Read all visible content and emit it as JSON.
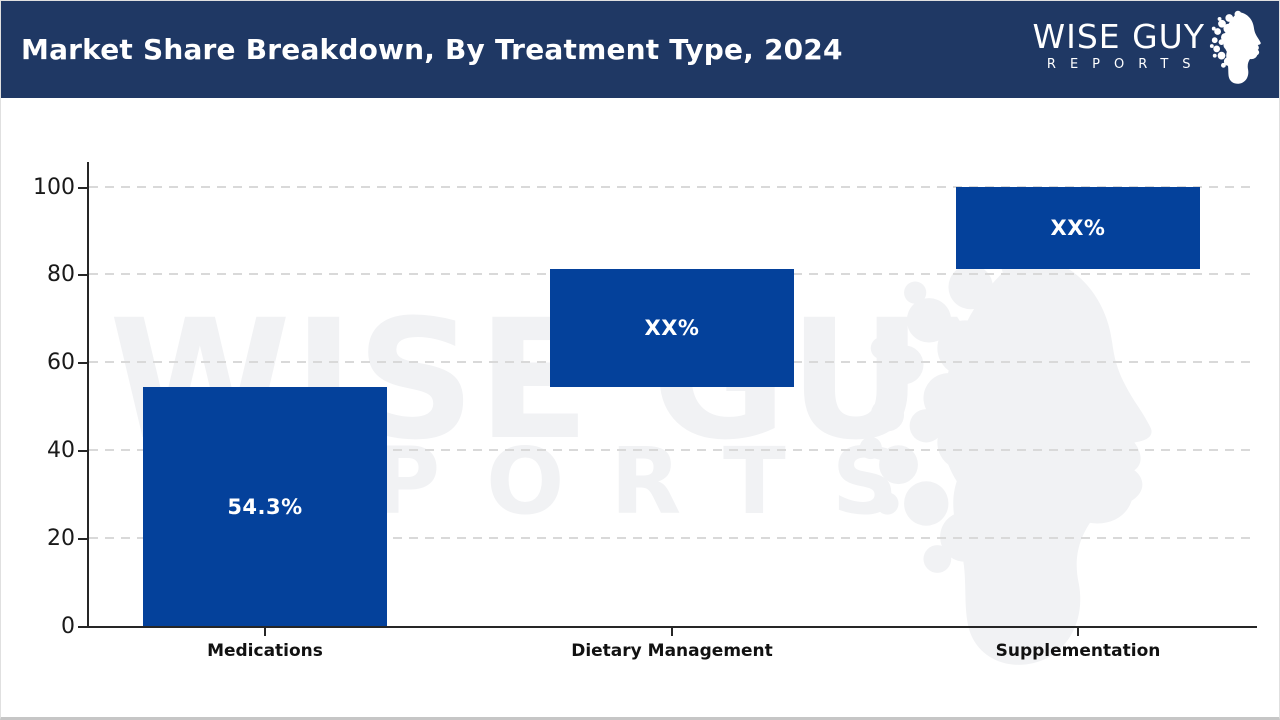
{
  "header": {
    "title": "Market Share Breakdown, By Treatment Type, 2024",
    "logo": {
      "primary": "WISE GUY",
      "secondary": "REPORTS"
    }
  },
  "watermark": {
    "primary": "WISE GUY",
    "secondary": "REPORTS"
  },
  "chart_data": {
    "type": "bar",
    "subtype": "floating-segment-waterfall",
    "title": "Market Share Breakdown, By Treatment Type, 2024",
    "categories": [
      "Medications",
      "Dietary Management",
      "Supplementation"
    ],
    "segments": [
      {
        "category": "Medications",
        "start": 0,
        "end": 54.3,
        "label": "54.3%"
      },
      {
        "category": "Dietary Management",
        "start": 54.3,
        "end": 81.2,
        "label": "XX%"
      },
      {
        "category": "Supplementation",
        "start": 81.2,
        "end": 100,
        "label": "XX%"
      }
    ],
    "yticks": [
      0,
      20,
      40,
      60,
      80,
      100
    ],
    "ylim": [
      0,
      105.5
    ],
    "xlabel": "",
    "ylabel": "",
    "grid": true,
    "legend": false,
    "bar_color": "#04419b",
    "bar_label_color": "#ffffff"
  },
  "colors": {
    "header_bg": "#1f3864",
    "bar": "#04419b",
    "grid": "#d9d9d9",
    "axis": "#262626",
    "watermark": "#f1f2f4"
  }
}
